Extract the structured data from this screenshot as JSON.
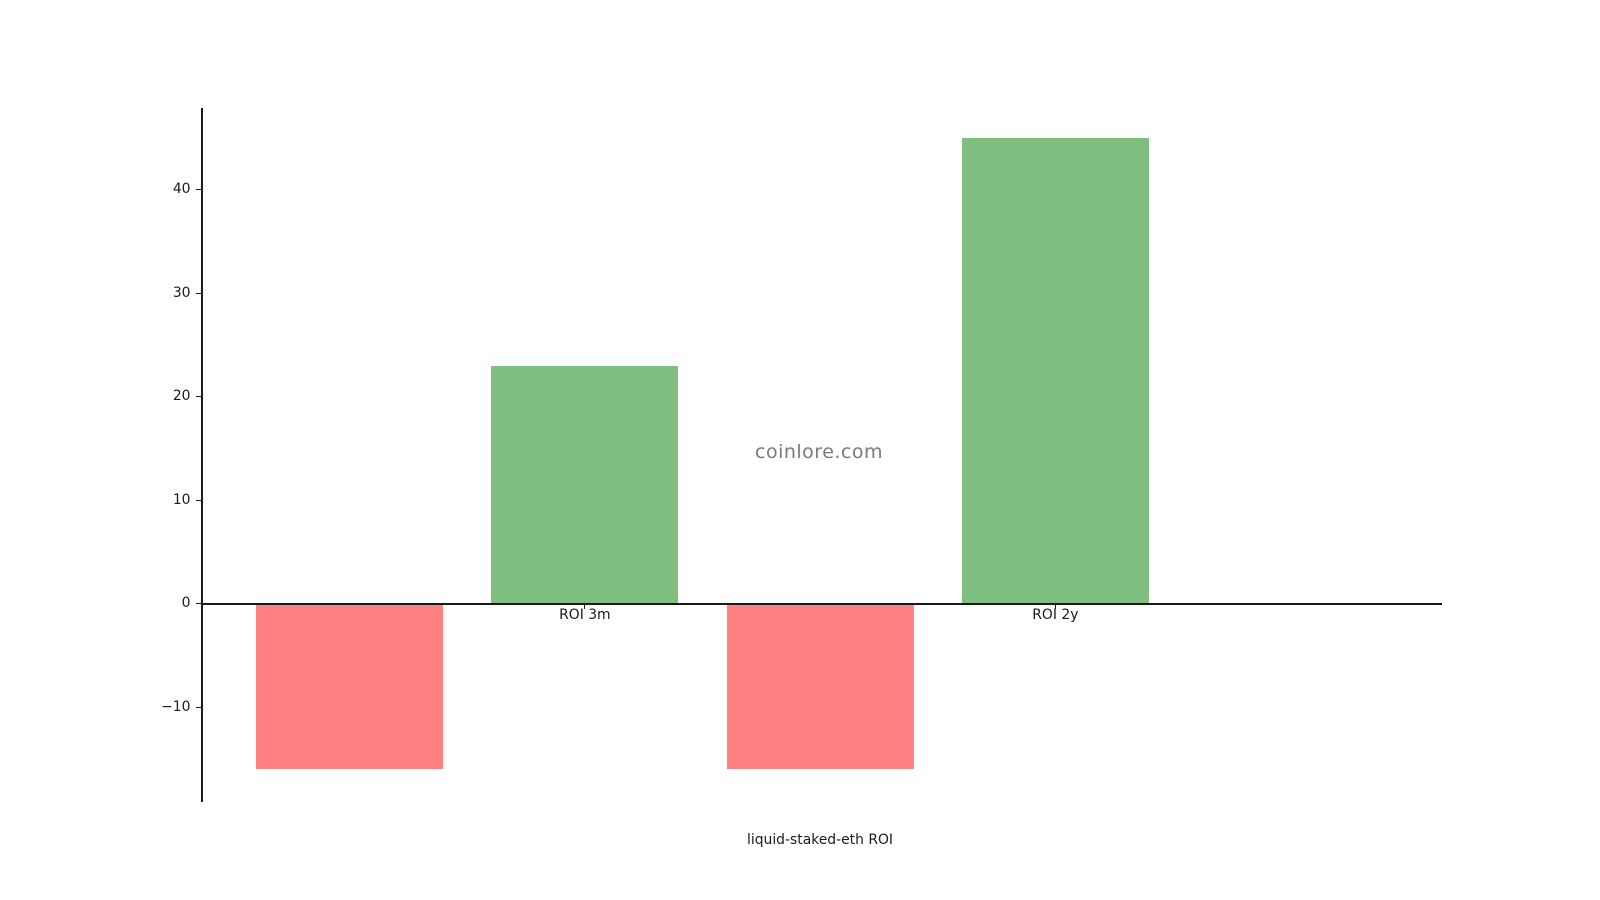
{
  "chart_data": {
    "type": "bar",
    "categories": [
      "",
      "ROI 3m",
      "",
      "ROI 2y"
    ],
    "values": [
      -16,
      23,
      -16,
      45
    ],
    "bar_colors": [
      "#ff8080",
      "#80bf80",
      "#ff8080",
      "#80bf80"
    ],
    "title": "",
    "xlabel": "liquid-staked-eth ROI",
    "ylabel": "",
    "yticks": [
      -10,
      0,
      10,
      20,
      30,
      40
    ],
    "ylim": [
      -19,
      48
    ],
    "grid": false,
    "legend_position": "none",
    "watermark": "coinlore.com",
    "colors": {
      "positive_bar": "#80bf80",
      "negative_bar": "#ff8080",
      "axis": "#1a1a1a",
      "tick_text": "#1a1a1a",
      "watermark_text": "#7a7a7a"
    }
  }
}
